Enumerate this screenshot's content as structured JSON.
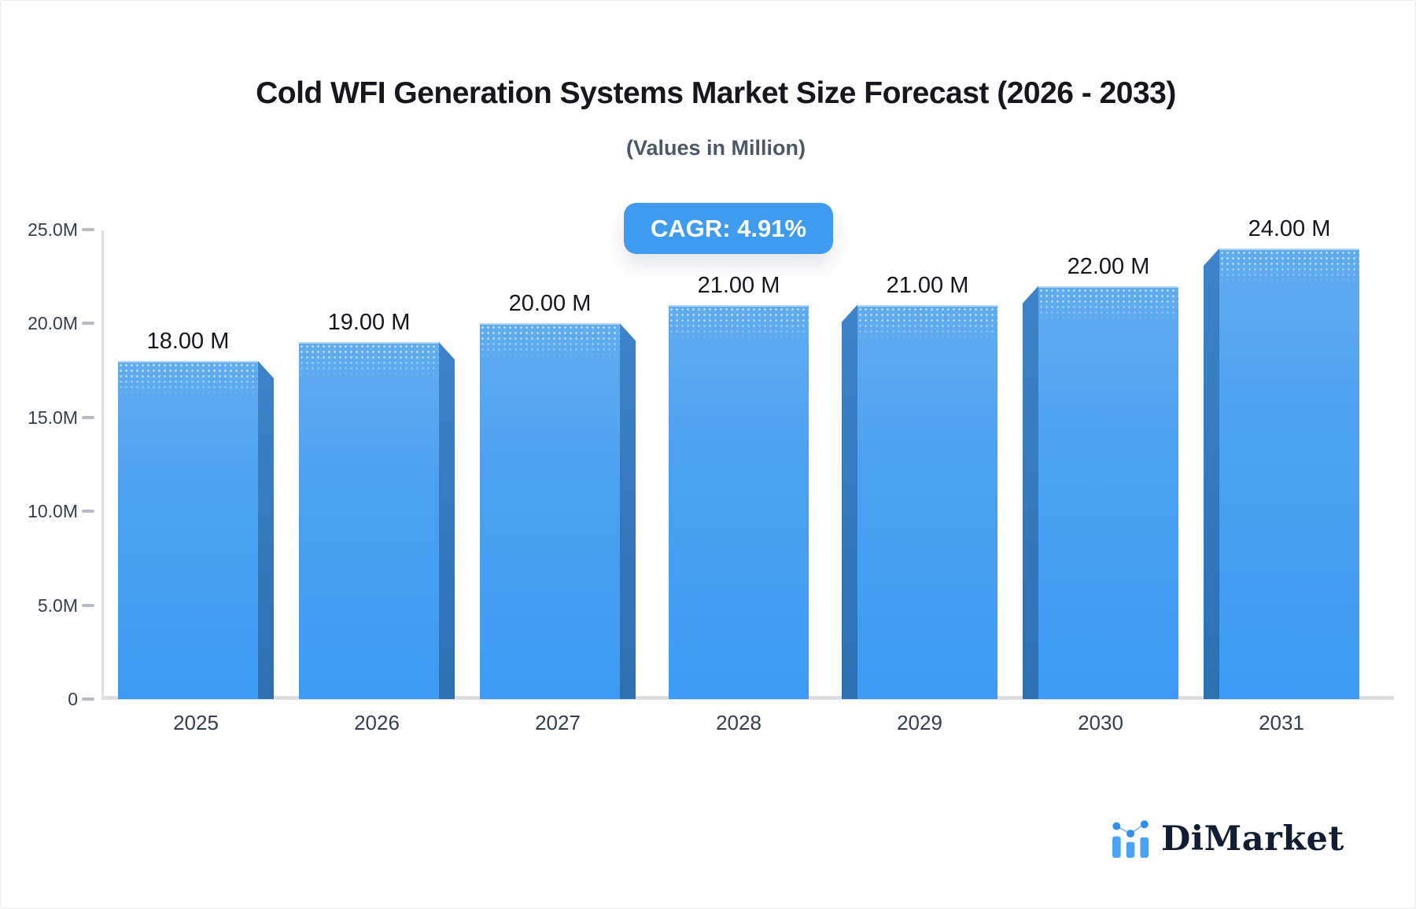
{
  "title": "Cold WFI Generation Systems Market Size Forecast (2026 - 2033)",
  "subtitle": "(Values in Million)",
  "badge": {
    "label": "CAGR: 4.91%",
    "color": "#3e9bef",
    "text_color": "#ffffff"
  },
  "chart_data": {
    "type": "bar",
    "categories": [
      "2025",
      "2026",
      "2027",
      "2028",
      "2029",
      "2030",
      "2031"
    ],
    "values": [
      18,
      19,
      20,
      21,
      21,
      22,
      24
    ],
    "value_labels": [
      "18.00 M",
      "19.00 M",
      "20.00 M",
      "21.00 M",
      "21.00 M",
      "22.00 M",
      "24.00 M"
    ],
    "unit": "Million",
    "title": "Cold WFI Generation Systems Market Size Forecast (2026 - 2033)",
    "subtitle": "(Values in Million)",
    "xlabel": "",
    "ylabel": "",
    "y_ticks": [
      {
        "value": 0,
        "label": "0"
      },
      {
        "value": 5,
        "label": "5.0M"
      },
      {
        "value": 10,
        "label": "10.0M"
      },
      {
        "value": 15,
        "label": "15.0M"
      },
      {
        "value": 20,
        "label": "20.0M"
      },
      {
        "value": 25,
        "label": "25.0M"
      }
    ],
    "ylim": [
      0,
      25
    ],
    "grid": false,
    "legend": "none",
    "bar_style": "3d-beveled",
    "bar_face_color": "#429bf2",
    "bar_side_color": "#2e74b8",
    "annotation": "CAGR: 4.91%"
  },
  "logo": {
    "name": "DiMarket",
    "icon": "mini-bar-line-chart-icon",
    "icon_color": "#4aa3f7",
    "text_color": "#101d33"
  }
}
